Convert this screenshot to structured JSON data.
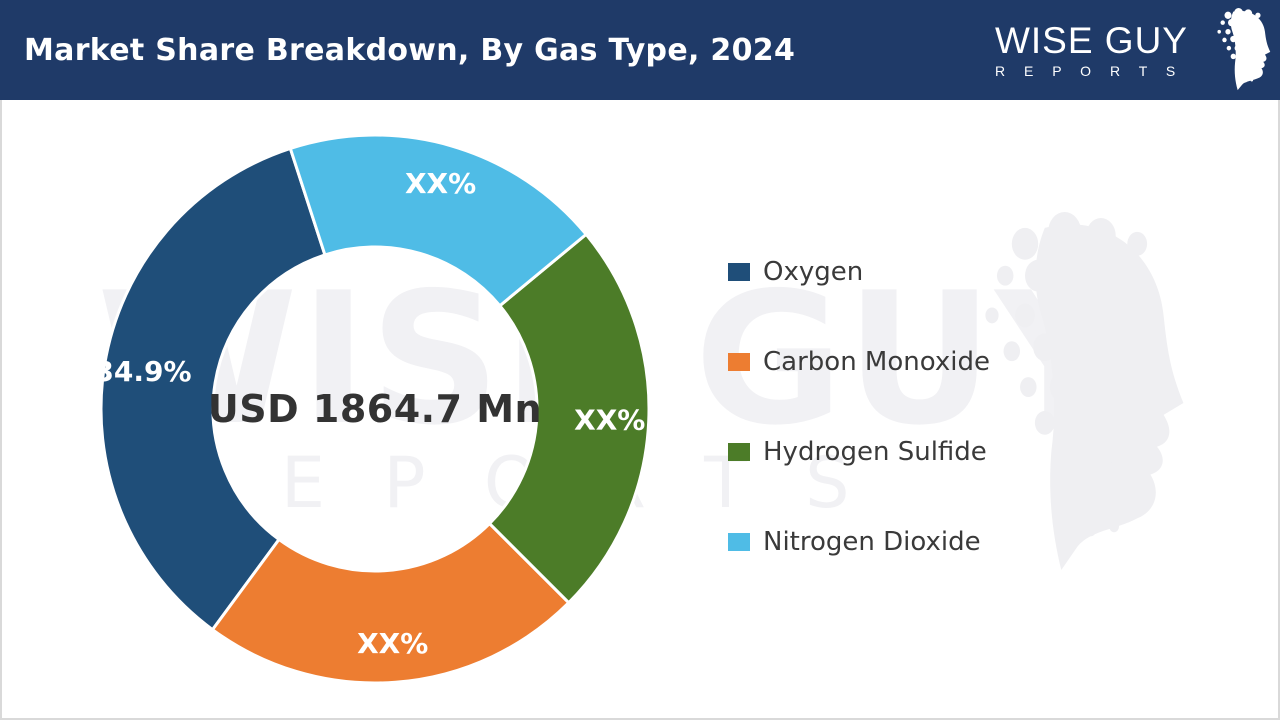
{
  "header": {
    "title": "Market Share Breakdown, By Gas Type, 2024",
    "logo": {
      "line1": "WISE GUY",
      "line2": "R E P O R T S"
    }
  },
  "watermark": {
    "line1": "WISE GUY",
    "line2": "R E P O R T S"
  },
  "colors": {
    "header_bg": "#1F3A68",
    "content_border": "#D9D9D9",
    "center_text": "#333333",
    "legend_text": "#3A3A3A",
    "slice_label_text": "#FFFFFF",
    "watermark": "#F1F1F4"
  },
  "chart_data": {
    "type": "pie",
    "subtype": "donut",
    "title": "Market Share Breakdown, By Gas Type, 2024",
    "center_label": "USD 1864.7 Mn",
    "start_angle_deg": 108,
    "direction": "counterclockwise",
    "legend_position": "right",
    "segments": [
      {
        "label": "Oxygen",
        "value": 34.9,
        "display_pct": "34.9%",
        "color": "#1F4E79"
      },
      {
        "label": "Carbon Monoxide",
        "value": 22.6,
        "display_pct": "XX%",
        "color": "#ED7D31"
      },
      {
        "label": "Hydrogen Sulfide",
        "value": 23.5,
        "display_pct": "XX%",
        "color": "#4C7C28"
      },
      {
        "label": "Nitrogen Dioxide",
        "value": 19.0,
        "display_pct": "XX%",
        "color": "#4FBCE6"
      }
    ]
  }
}
